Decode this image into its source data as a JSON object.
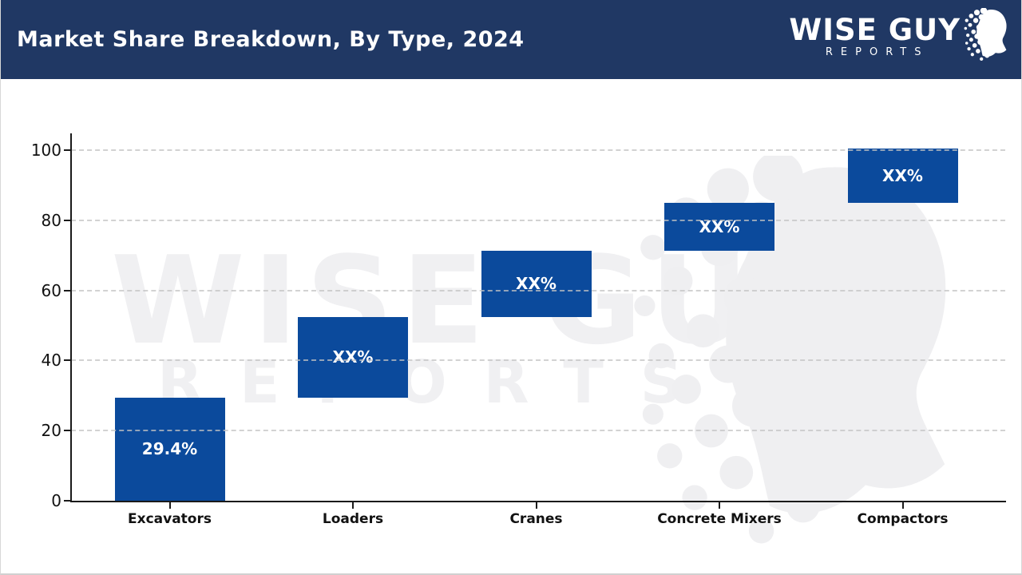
{
  "header": {
    "title": "Market Share Breakdown, By Type, 2024",
    "logo_line1": "WISE GUY",
    "logo_line2": "REPORTS"
  },
  "watermark": {
    "line1": "WISE GUY",
    "line2": "REPORTS"
  },
  "colors": {
    "header_bg": "#203864",
    "bar": "#0b4a9c",
    "bar_label": "#ffffff",
    "axis": "#1a1a1a",
    "grid": "#c3c3c3"
  },
  "chart_data": {
    "type": "bar",
    "subtype": "waterfall",
    "title": "Market Share Breakdown, By Type, 2024",
    "xlabel": "",
    "ylabel": "",
    "categories": [
      "Excavators",
      "Loaders",
      "Cranes",
      "Concrete Mixers",
      "Compactors"
    ],
    "segments": [
      {
        "category": "Excavators",
        "start": 0,
        "end": 29.4,
        "label": "29.4%"
      },
      {
        "category": "Loaders",
        "start": 29.4,
        "end": 52.4,
        "label": "XX%"
      },
      {
        "category": "Cranes",
        "start": 52.4,
        "end": 71.3,
        "label": "XX%"
      },
      {
        "category": "Concrete Mixers",
        "start": 71.3,
        "end": 85,
        "label": "XX%"
      },
      {
        "category": "Compactors",
        "start": 85,
        "end": 100.5,
        "label": "XX%"
      }
    ],
    "yticks": [
      0,
      20,
      40,
      60,
      80,
      100
    ],
    "ylim": [
      0,
      105
    ],
    "grid": "dashed-horizontal",
    "legend": "none"
  }
}
